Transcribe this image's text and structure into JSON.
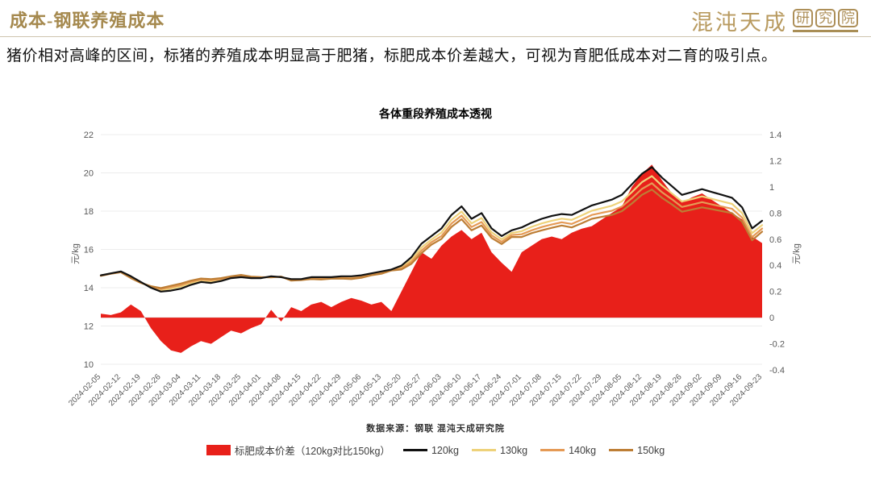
{
  "page": {
    "title": "成本-钢联养殖成本",
    "subtitle": "猪价相对高峰的区间，标猪的养殖成本明显高于肥猪，标肥成本价差越大，可视为育肥低成本对二育的吸引点。",
    "logo": {
      "main": "混沌天成",
      "boxes": [
        "研",
        "究",
        "院"
      ]
    }
  },
  "colors": {
    "title_gold": "#a5894e",
    "logo_gold": "#b89a5f",
    "spread_red": "#e8201a",
    "line_120": "#111111",
    "line_130": "#eed27a",
    "line_140": "#e59a55",
    "line_150": "#bd7e35",
    "grid": "#ececec",
    "zero_line": "#dddddd",
    "tick_text": "#595959"
  },
  "chart_data": {
    "type": "area+line",
    "title": "各体重段养殖成本透视",
    "source": "数据来源：钢联 混沌天成研究院",
    "ylabel_left": "元/kg",
    "ylabel_right": "元/kg",
    "ylim_left": [
      10,
      22
    ],
    "yticks_left": [
      "22",
      "20",
      "18",
      "16",
      "14",
      "12",
      "10"
    ],
    "ylim_right": [
      -0.4,
      1.4
    ],
    "yticks_right": [
      "1.4",
      "1.2",
      "1",
      "0.8",
      "0.6",
      "0.4",
      "0.2",
      "0",
      "-0.2",
      "-0.4"
    ],
    "grid": "horizontal",
    "legend_position": "bottom",
    "x_labels": [
      "2024-02-05",
      "2024-02-12",
      "2024-02-19",
      "2024-02-26",
      "2024-03-04",
      "2024-03-11",
      "2024-03-18",
      "2024-03-25",
      "2024-04-01",
      "2024-04-08",
      "2024-04-15",
      "2024-04-22",
      "2024-04-29",
      "2024-05-06",
      "2024-05-13",
      "2024-05-20",
      "2024-05-27",
      "2024-06-03",
      "2024-06-10",
      "2024-06-17",
      "2024-06-24",
      "2024-07-01",
      "2024-07-08",
      "2024-07-15",
      "2024-07-22",
      "2024-07-29",
      "2024-08-05",
      "2024-08-12",
      "2024-08-19",
      "2024-08-26",
      "2024-09-02",
      "2024-09-09",
      "2024-09-16",
      "2024-09-23"
    ],
    "x_step_weeks": 0.5,
    "area_series": {
      "name": "标肥成本价差（120kg对比150kg）",
      "axis": "right",
      "color": "#e8201a",
      "values": [
        0.03,
        0.02,
        0.04,
        0.1,
        0.05,
        -0.08,
        -0.18,
        -0.25,
        -0.27,
        -0.22,
        -0.18,
        -0.2,
        -0.15,
        -0.1,
        -0.12,
        -0.08,
        -0.05,
        0.06,
        -0.03,
        0.08,
        0.05,
        0.1,
        0.12,
        0.08,
        0.12,
        0.15,
        0.13,
        0.1,
        0.12,
        0.05,
        0.2,
        0.35,
        0.5,
        0.45,
        0.55,
        0.62,
        0.67,
        0.6,
        0.65,
        0.5,
        0.42,
        0.35,
        0.5,
        0.55,
        0.6,
        0.62,
        0.6,
        0.65,
        0.68,
        0.7,
        0.75,
        0.8,
        0.85,
        1.0,
        1.1,
        1.17,
        1.05,
        0.95,
        0.88,
        0.92,
        0.95,
        0.9,
        0.85,
        0.8,
        0.75,
        0.62,
        0.57
      ]
    },
    "line_series": [
      {
        "name": "120kg",
        "axis": "left",
        "color": "#111111",
        "values": [
          14.65,
          14.75,
          14.85,
          14.6,
          14.3,
          14.0,
          13.8,
          13.85,
          13.95,
          14.15,
          14.3,
          14.25,
          14.35,
          14.5,
          14.55,
          14.5,
          14.5,
          14.6,
          14.55,
          14.45,
          14.45,
          14.55,
          14.55,
          14.55,
          14.6,
          14.6,
          14.65,
          14.75,
          14.85,
          14.95,
          15.15,
          15.6,
          16.3,
          16.7,
          17.1,
          17.8,
          18.25,
          17.6,
          17.9,
          17.1,
          16.7,
          17.0,
          17.15,
          17.4,
          17.6,
          17.75,
          17.85,
          17.8,
          18.05,
          18.3,
          18.45,
          18.6,
          18.85,
          19.4,
          19.95,
          20.3,
          19.75,
          19.3,
          18.85,
          19.0,
          19.15,
          19.0,
          18.85,
          18.7,
          18.2,
          17.1,
          17.5
        ]
      },
      {
        "name": "130kg",
        "axis": "left",
        "color": "#eed27a",
        "values": [
          14.64,
          14.74,
          14.83,
          14.56,
          14.28,
          14.03,
          13.87,
          13.95,
          14.06,
          14.24,
          14.37,
          14.33,
          14.41,
          14.54,
          14.6,
          14.53,
          14.52,
          14.58,
          14.56,
          14.42,
          14.43,
          14.51,
          14.5,
          14.52,
          14.55,
          14.54,
          14.6,
          14.71,
          14.8,
          14.93,
          15.07,
          15.46,
          16.1,
          16.52,
          16.88,
          17.55,
          17.98,
          17.36,
          17.64,
          16.9,
          16.53,
          16.86,
          16.95,
          17.18,
          17.36,
          17.5,
          17.61,
          17.54,
          17.78,
          18.02,
          18.15,
          18.28,
          18.51,
          19.0,
          19.51,
          19.83,
          19.33,
          18.92,
          18.5,
          18.63,
          18.77,
          18.64,
          18.51,
          18.38,
          17.9,
          16.85,
          17.27
        ]
      },
      {
        "name": "140kg",
        "axis": "left",
        "color": "#e59a55",
        "values": [
          14.63,
          14.74,
          14.82,
          14.53,
          14.26,
          14.06,
          13.93,
          14.03,
          14.14,
          14.31,
          14.43,
          14.39,
          14.46,
          14.57,
          14.64,
          14.56,
          14.54,
          14.56,
          14.57,
          14.39,
          14.41,
          14.48,
          14.46,
          14.49,
          14.51,
          14.49,
          14.56,
          14.68,
          14.76,
          14.91,
          15.01,
          15.35,
          15.94,
          16.38,
          16.7,
          17.35,
          17.77,
          17.17,
          17.43,
          16.74,
          16.4,
          16.75,
          16.79,
          17.0,
          17.17,
          17.3,
          17.42,
          17.33,
          17.56,
          17.8,
          17.91,
          18.02,
          18.24,
          18.68,
          19.16,
          19.46,
          18.99,
          18.62,
          18.22,
          18.34,
          18.47,
          18.35,
          18.24,
          18.12,
          17.66,
          16.65,
          17.09
        ]
      },
      {
        "name": "150kg",
        "axis": "left",
        "color": "#bd7e35",
        "values": [
          14.62,
          14.73,
          14.81,
          14.5,
          14.25,
          14.08,
          13.98,
          14.1,
          14.22,
          14.37,
          14.48,
          14.45,
          14.5,
          14.6,
          14.67,
          14.58,
          14.55,
          14.54,
          14.58,
          14.37,
          14.4,
          14.45,
          14.43,
          14.47,
          14.48,
          14.45,
          14.52,
          14.65,
          14.73,
          14.9,
          14.95,
          15.25,
          15.8,
          16.25,
          16.55,
          17.18,
          17.58,
          17.0,
          17.25,
          16.6,
          16.28,
          16.65,
          16.65,
          16.85,
          17.0,
          17.13,
          17.25,
          17.15,
          17.37,
          17.6,
          17.7,
          17.8,
          18.0,
          18.4,
          18.85,
          19.13,
          18.7,
          18.35,
          17.97,
          18.08,
          18.2,
          18.1,
          18.0,
          17.9,
          17.45,
          16.48,
          16.93
        ]
      }
    ]
  }
}
